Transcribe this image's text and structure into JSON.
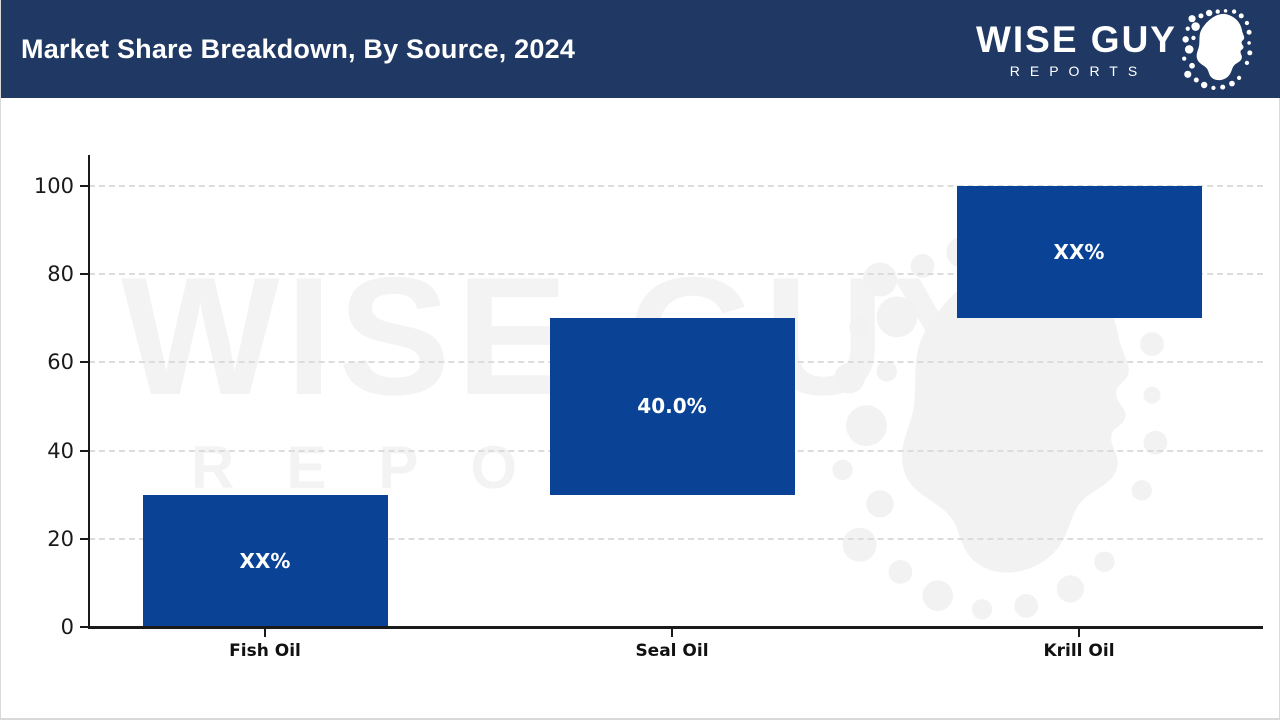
{
  "page": {
    "background": "#ffffff",
    "border_color": "#d9d9d9"
  },
  "header": {
    "background": "#1f3864",
    "title": "Market Share Breakdown, By Source, 2024",
    "logo": {
      "line1": "WISE GUY",
      "line2": "REPORTS"
    }
  },
  "watermark": {
    "line1": "WISE GUY",
    "line2": "REPORTS"
  },
  "chart_data": {
    "type": "bar",
    "subtype": "floating-waterfall",
    "title": "Market Share Breakdown, By Source, 2024",
    "categories": [
      "Fish Oil",
      "Seal Oil",
      "Krill Oil"
    ],
    "series": [
      {
        "name": "Market Share",
        "segments": [
          {
            "category": "Fish Oil",
            "from": 0,
            "to": 30,
            "label": "XX%"
          },
          {
            "category": "Seal Oil",
            "from": 30,
            "to": 70,
            "label": "40.0%"
          },
          {
            "category": "Krill Oil",
            "from": 70,
            "to": 100,
            "label": "XX%"
          }
        ]
      }
    ],
    "yticks": [
      0,
      20,
      40,
      60,
      80,
      100
    ],
    "ylim": [
      0,
      107
    ],
    "xlabel": "",
    "ylabel": "",
    "grid": "horizontal-dashed",
    "legend": "none",
    "colors": {
      "bar": "#0a4296",
      "bar_label": "#ffffff",
      "axis": "#1a1a1a",
      "grid": "#dcdcdc",
      "tick_label": "#1a1a1a"
    }
  }
}
